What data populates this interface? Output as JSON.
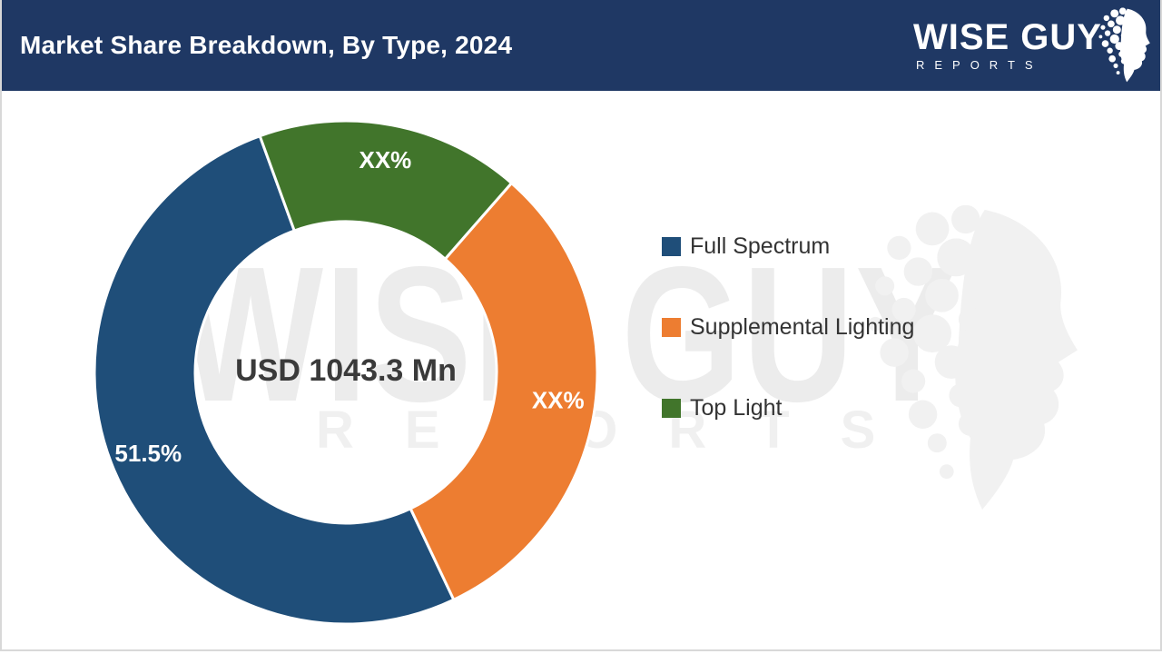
{
  "header": {
    "title": "Market Share Breakdown, By Type, 2024",
    "logo": {
      "name": "WISE GUY",
      "tagline": "REPORTS"
    }
  },
  "watermark": {
    "name": "WISE GUY",
    "tagline": "REPORTS"
  },
  "chart_data": {
    "type": "pie",
    "subtype": "donut",
    "title": "Market Share Breakdown, By Type, 2024",
    "center_label": "USD 1043.3 Mn",
    "start_angle_deg": 110,
    "direction": "counterclockwise",
    "inner_radius_ratio": 0.6,
    "legend_position": "right",
    "slices": [
      {
        "label": "Full Spectrum",
        "value": 51.5,
        "display_label": "51.5%",
        "color": "#1F4E79"
      },
      {
        "label": "Supplemental Lighting",
        "value": 31.5,
        "display_label": "XX%",
        "color": "#ED7D31"
      },
      {
        "label": "Top Light",
        "value": 17.0,
        "display_label": "XX%",
        "color": "#41752B"
      }
    ]
  },
  "colors": {
    "header_bg": "#1F3864",
    "center_text": "#3A3A3A",
    "legend_text": "#333333",
    "slice_label": "#FFFFFF",
    "watermark": "#ECECEC",
    "border": "#D8D8D8"
  }
}
